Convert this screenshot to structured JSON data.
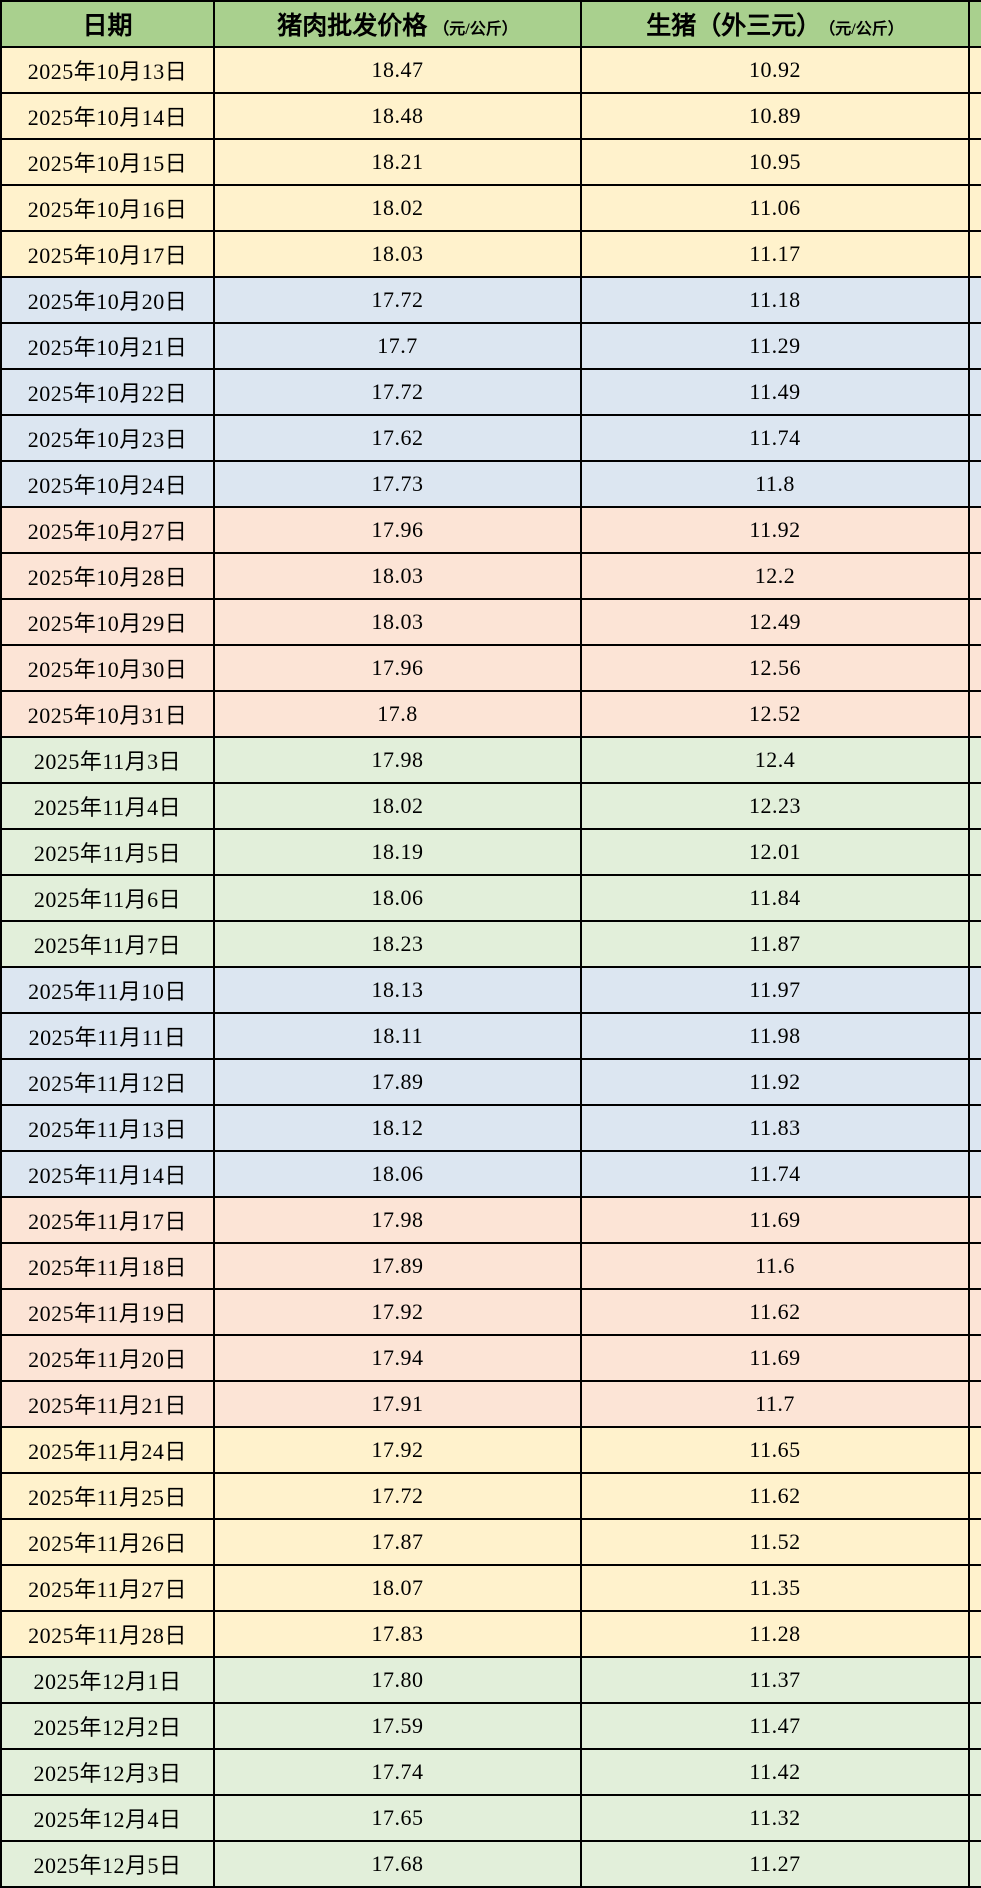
{
  "colors": {
    "header": "#A9D08E",
    "yellow": "#FFF2CC",
    "blue": "#DCE6F1",
    "pink": "#FCE4D6",
    "green": "#E2EFDA",
    "border": "#000000"
  },
  "header": {
    "date_label": "日期",
    "pork_label": "猪肉批发价格",
    "pork_unit": "（元/公斤）",
    "hog_label": "生猪（外三元）",
    "hog_unit": "（元/公斤）"
  },
  "chart_data": {
    "type": "table",
    "title": "",
    "columns": [
      "日期",
      "猪肉批发价格（元/公斤）",
      "生猪（外三元）（元/公斤）"
    ],
    "rows": [
      {
        "date": "2025年10月13日",
        "pork": "18.47",
        "hog": "10.92",
        "band": "yellow"
      },
      {
        "date": "2025年10月14日",
        "pork": "18.48",
        "hog": "10.89",
        "band": "yellow"
      },
      {
        "date": "2025年10月15日",
        "pork": "18.21",
        "hog": "10.95",
        "band": "yellow"
      },
      {
        "date": "2025年10月16日",
        "pork": "18.02",
        "hog": "11.06",
        "band": "yellow"
      },
      {
        "date": "2025年10月17日",
        "pork": "18.03",
        "hog": "11.17",
        "band": "yellow"
      },
      {
        "date": "2025年10月20日",
        "pork": "17.72",
        "hog": "11.18",
        "band": "blue"
      },
      {
        "date": "2025年10月21日",
        "pork": "17.7",
        "hog": "11.29",
        "band": "blue"
      },
      {
        "date": "2025年10月22日",
        "pork": "17.72",
        "hog": "11.49",
        "band": "blue"
      },
      {
        "date": "2025年10月23日",
        "pork": "17.62",
        "hog": "11.74",
        "band": "blue"
      },
      {
        "date": "2025年10月24日",
        "pork": "17.73",
        "hog": "11.8",
        "band": "blue"
      },
      {
        "date": "2025年10月27日",
        "pork": "17.96",
        "hog": "11.92",
        "band": "pink"
      },
      {
        "date": "2025年10月28日",
        "pork": "18.03",
        "hog": "12.2",
        "band": "pink"
      },
      {
        "date": "2025年10月29日",
        "pork": "18.03",
        "hog": "12.49",
        "band": "pink"
      },
      {
        "date": "2025年10月30日",
        "pork": "17.96",
        "hog": "12.56",
        "band": "pink"
      },
      {
        "date": "2025年10月31日",
        "pork": "17.8",
        "hog": "12.52",
        "band": "pink"
      },
      {
        "date": "2025年11月3日",
        "pork": "17.98",
        "hog": "12.4",
        "band": "green"
      },
      {
        "date": "2025年11月4日",
        "pork": "18.02",
        "hog": "12.23",
        "band": "green"
      },
      {
        "date": "2025年11月5日",
        "pork": "18.19",
        "hog": "12.01",
        "band": "green"
      },
      {
        "date": "2025年11月6日",
        "pork": "18.06",
        "hog": "11.84",
        "band": "green"
      },
      {
        "date": "2025年11月7日",
        "pork": "18.23",
        "hog": "11.87",
        "band": "green"
      },
      {
        "date": "2025年11月10日",
        "pork": "18.13",
        "hog": "11.97",
        "band": "blue"
      },
      {
        "date": "2025年11月11日",
        "pork": "18.11",
        "hog": "11.98",
        "band": "blue"
      },
      {
        "date": "2025年11月12日",
        "pork": "17.89",
        "hog": "11.92",
        "band": "blue"
      },
      {
        "date": "2025年11月13日",
        "pork": "18.12",
        "hog": "11.83",
        "band": "blue"
      },
      {
        "date": "2025年11月14日",
        "pork": "18.06",
        "hog": "11.74",
        "band": "blue"
      },
      {
        "date": "2025年11月17日",
        "pork": "17.98",
        "hog": "11.69",
        "band": "pink"
      },
      {
        "date": "2025年11月18日",
        "pork": "17.89",
        "hog": "11.6",
        "band": "pink"
      },
      {
        "date": "2025年11月19日",
        "pork": "17.92",
        "hog": "11.62",
        "band": "pink"
      },
      {
        "date": "2025年11月20日",
        "pork": "17.94",
        "hog": "11.69",
        "band": "pink"
      },
      {
        "date": "2025年11月21日",
        "pork": "17.91",
        "hog": "11.7",
        "band": "pink"
      },
      {
        "date": "2025年11月24日",
        "pork": "17.92",
        "hog": "11.65",
        "band": "yellow"
      },
      {
        "date": "2025年11月25日",
        "pork": "17.72",
        "hog": "11.62",
        "band": "yellow"
      },
      {
        "date": "2025年11月26日",
        "pork": "17.87",
        "hog": "11.52",
        "band": "yellow"
      },
      {
        "date": "2025年11月27日",
        "pork": "18.07",
        "hog": "11.35",
        "band": "yellow"
      },
      {
        "date": "2025年11月28日",
        "pork": "17.83",
        "hog": "11.28",
        "band": "yellow"
      },
      {
        "date": "2025年12月1日",
        "pork": "17.80",
        "hog": "11.37",
        "band": "green"
      },
      {
        "date": "2025年12月2日",
        "pork": "17.59",
        "hog": "11.47",
        "band": "green"
      },
      {
        "date": "2025年12月3日",
        "pork": "17.74",
        "hog": "11.42",
        "band": "green"
      },
      {
        "date": "2025年12月4日",
        "pork": "17.65",
        "hog": "11.32",
        "band": "green"
      },
      {
        "date": "2025年12月5日",
        "pork": "17.68",
        "hog": "11.27",
        "band": "green"
      }
    ]
  }
}
